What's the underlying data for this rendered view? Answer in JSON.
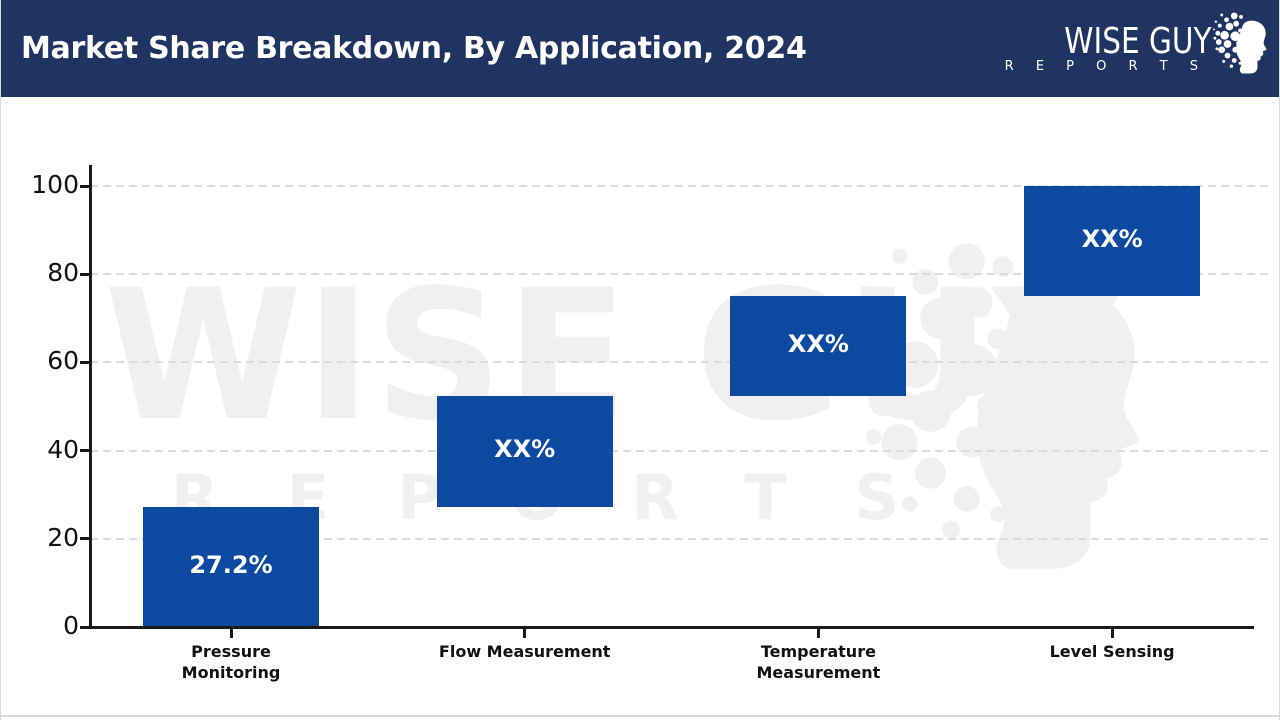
{
  "header": {
    "title": "Market Share Breakdown, By Application, 2024",
    "logo": {
      "line1": "WISE GUY",
      "line2": "REPORTS"
    }
  },
  "watermark": {
    "line1": "WISE GUY",
    "line2": "REPORTS"
  },
  "colors": {
    "header_bg": "#1f3463",
    "bar": "#0c4aa1",
    "bar_label": "#ffffff",
    "grid": "#dcdcdc",
    "axis": "#1a1a1a",
    "watermark": "#f0f0f0"
  },
  "chart_data": {
    "type": "bar",
    "variant": "waterfall",
    "title": "Market Share Breakdown, By Application, 2024",
    "categories": [
      "Pressure Monitoring",
      "Flow Measurement",
      "Temperature Measurement",
      "Level Sensing"
    ],
    "category_lines": [
      [
        "Pressure",
        "Monitoring"
      ],
      [
        "Flow Measurement"
      ],
      [
        "Temperature",
        "Measurement"
      ],
      [
        "Level Sensing"
      ]
    ],
    "segments": [
      {
        "category": "Pressure Monitoring",
        "start": 0,
        "end": 27.2,
        "label": "27.2%"
      },
      {
        "category": "Flow Measurement",
        "start": 27.2,
        "end": 52.4,
        "label": "XX%"
      },
      {
        "category": "Temperature Measurement",
        "start": 52.4,
        "end": 75.1,
        "label": "XX%"
      },
      {
        "category": "Level Sensing",
        "start": 75.1,
        "end": 100,
        "label": "XX%"
      }
    ],
    "ylabel": "",
    "xlabel": "",
    "yticks": [
      0,
      20,
      40,
      60,
      80,
      100
    ],
    "ylim": [
      0,
      105
    ],
    "grid": "horizontal-dashed",
    "legend": "none"
  }
}
